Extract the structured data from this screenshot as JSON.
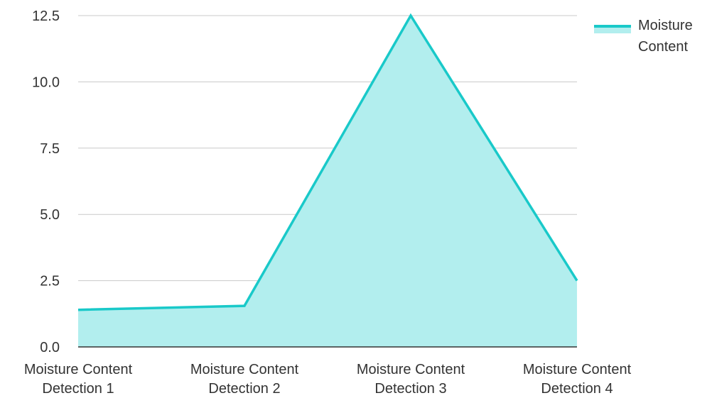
{
  "chart_data": {
    "type": "area",
    "categories": [
      [
        "Moisture Content",
        "Detection 1"
      ],
      [
        "Moisture Content",
        "Detection 2"
      ],
      [
        "Moisture Content",
        "Detection 3"
      ],
      [
        "Moisture Content",
        "Detection 4"
      ]
    ],
    "series": [
      {
        "name": "Moisture Content",
        "name_lines": [
          "Moisture",
          "Content"
        ],
        "values": [
          1.4,
          1.55,
          12.5,
          2.5
        ]
      }
    ],
    "y_ticks": [
      "0.0",
      "2.5",
      "5.0",
      "7.5",
      "10.0",
      "12.5"
    ],
    "ylim": [
      0,
      12.5
    ],
    "grid": "horizontal",
    "legend_position": "top-right",
    "colors": {
      "line": "#19c9c9",
      "fill": "#b2eeee",
      "grid": "#c9c9c9",
      "axis": "#333333"
    }
  }
}
